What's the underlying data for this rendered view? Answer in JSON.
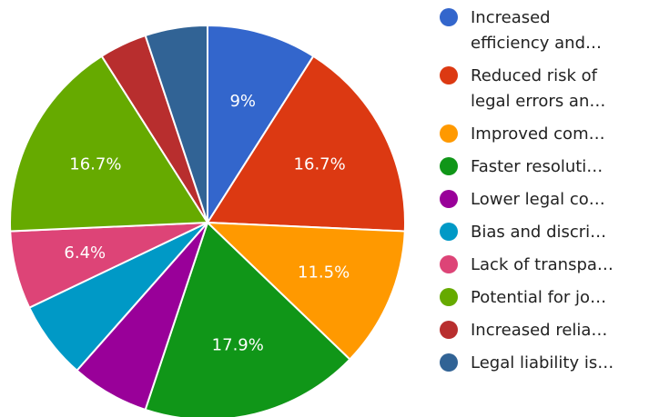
{
  "chart_data": {
    "type": "pie",
    "slices": [
      {
        "name": "Increased\nefficiency and…",
        "value": 9.0,
        "label": "9%",
        "color": "#3366cc"
      },
      {
        "name": "Reduced risk of\nlegal errors an…",
        "value": 16.7,
        "label": "16.7%",
        "color": "#dc3912"
      },
      {
        "name": "Improved com…",
        "value": 11.5,
        "label": "11.5%",
        "color": "#ff9900"
      },
      {
        "name": "Faster resoluti…",
        "value": 17.9,
        "label": "17.9%",
        "color": "#109618"
      },
      {
        "name": "Lower legal co…",
        "value": 6.4,
        "label": "",
        "color": "#990099"
      },
      {
        "name": "Bias and discri…",
        "value": 6.4,
        "label": "",
        "color": "#0099c6"
      },
      {
        "name": "Lack of transpa…",
        "value": 6.4,
        "label": "6.4%",
        "color": "#dd4477"
      },
      {
        "name": "Potential for jo…",
        "value": 16.7,
        "label": "16.7%",
        "color": "#66aa00"
      },
      {
        "name": "Increased relia…",
        "value": 3.9,
        "label": "",
        "color": "#b82e2e"
      },
      {
        "name": "Legal liability is…",
        "value": 5.1,
        "label": "",
        "color": "#316395"
      }
    ],
    "legend_position": "right"
  }
}
